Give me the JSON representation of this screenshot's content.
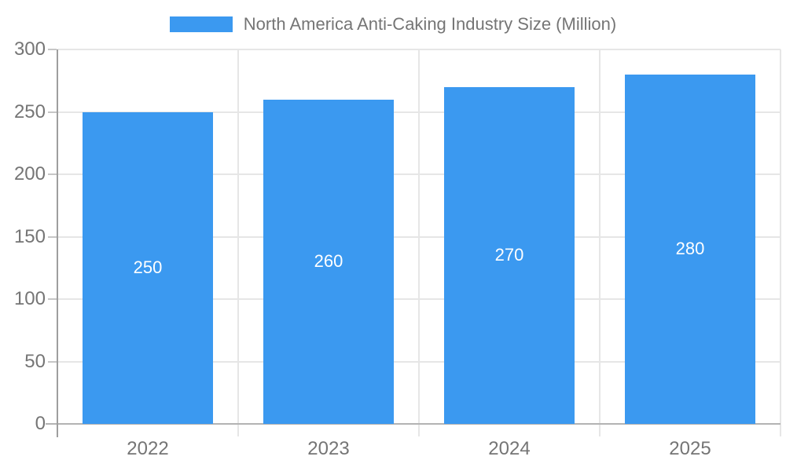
{
  "chart_data": {
    "type": "bar",
    "title": "North America Anti-Caking Industry Size (Million)",
    "legend": {
      "label": "North America Anti-Caking Industry Size (Million)",
      "position": "top-center"
    },
    "categories": [
      "2022",
      "2023",
      "2024",
      "2025"
    ],
    "values": [
      250,
      260,
      270,
      280
    ],
    "data_labels": [
      "250",
      "260",
      "270",
      "280"
    ],
    "xlabel": "",
    "ylabel": "",
    "ylim": [
      0,
      300
    ],
    "yticks": [
      0,
      50,
      100,
      150,
      200,
      250,
      300
    ],
    "grid": true,
    "colors": {
      "bar": "#3b99f0",
      "axis_text": "#757575",
      "legend_text": "#757575",
      "data_label": "#ffffff",
      "gridline": "#e6e6e6",
      "baseline": "#b3b3b3",
      "axis_line": "#9e9e9e",
      "minor_tick": "#c6c6c6",
      "background": "#ffffff"
    }
  }
}
